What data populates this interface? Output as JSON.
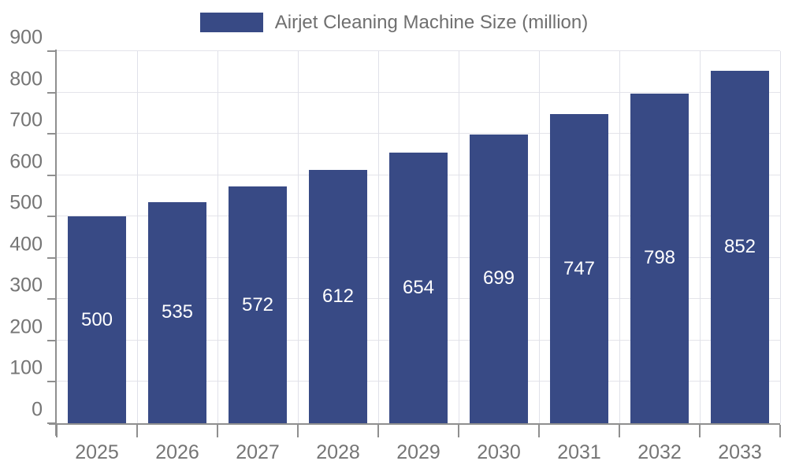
{
  "legend": {
    "label": "Airjet Cleaning Machine Size (million)",
    "swatch_color": "#384A85"
  },
  "chart_data": {
    "type": "bar",
    "title": "Airjet Cleaning Machine Size (million)",
    "categories": [
      "2025",
      "2026",
      "2027",
      "2028",
      "2029",
      "2030",
      "2031",
      "2032",
      "2033"
    ],
    "values": [
      500,
      535,
      572,
      612,
      654,
      699,
      747,
      798,
      852
    ],
    "xlabel": "",
    "ylabel": "",
    "ylim": [
      0,
      900
    ],
    "ytick_step": 100,
    "grid": true,
    "legend_position": "top-center",
    "colors": {
      "bar": "#384A85",
      "value_label": "#FFFFFF",
      "axis_text": "#757575",
      "grid_line": "#E4E4EA",
      "axis_line": "#8F8F8F"
    }
  }
}
